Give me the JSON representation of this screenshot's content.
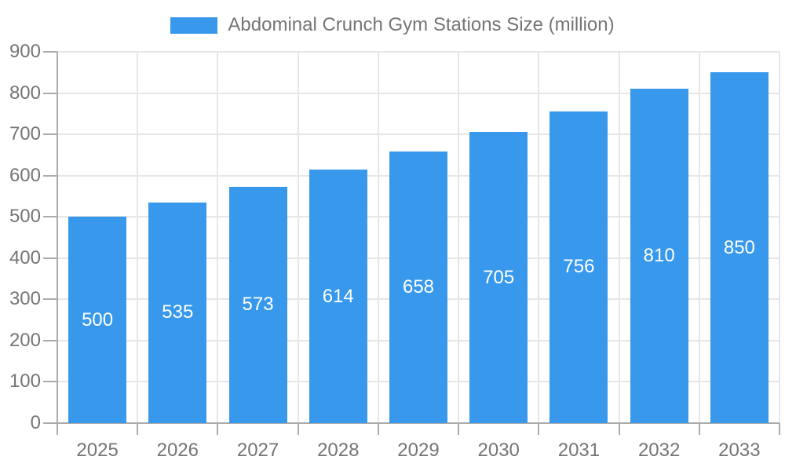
{
  "legend": {
    "label": "Abdominal Crunch Gym Stations Size (million)"
  },
  "colors": {
    "bar": "#3899EC",
    "axis_text": "#757575",
    "grid_line": "#E6E6E6",
    "axis_line": "#ABABAB",
    "value_label": "#FFFFFF",
    "background": "#FFFFFF"
  },
  "chart_data": {
    "type": "bar",
    "title": "Abdominal Crunch Gym Stations Size (million)",
    "categories": [
      "2025",
      "2026",
      "2027",
      "2028",
      "2029",
      "2030",
      "2031",
      "2032",
      "2033"
    ],
    "values": [
      500,
      535,
      573,
      614,
      658,
      705,
      756,
      810,
      850
    ],
    "xlabel": "",
    "ylabel": "",
    "ylim": [
      0,
      900
    ],
    "ytick_interval": 100,
    "ytick_labels": [
      "0",
      "100",
      "200",
      "300",
      "400",
      "500",
      "600",
      "700",
      "800",
      "900"
    ],
    "grid": true,
    "legend_position": "top-center",
    "value_label_position": "inside-center"
  }
}
